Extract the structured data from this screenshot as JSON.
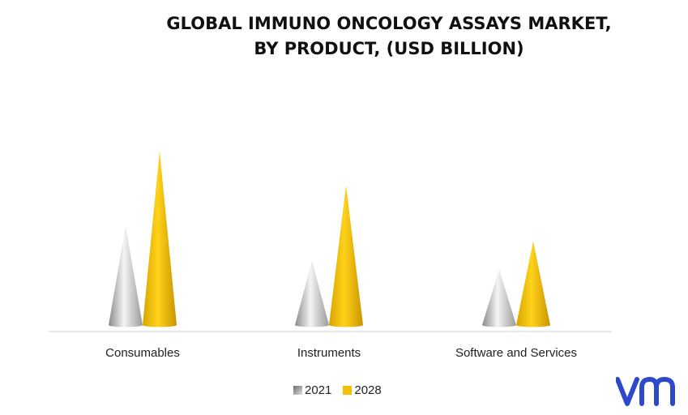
{
  "chart_data": {
    "type": "bar",
    "title_lines": [
      "GLOBAL IMMUNO ONCOLOGY ASSAYS MARKET,",
      "BY PRODUCT, (USD BILLION)"
    ],
    "categories": [
      "Consumables",
      "Instruments",
      "Software and Services"
    ],
    "series": [
      {
        "name": "2021",
        "values": [
          4.6,
          3.0,
          2.6
        ],
        "color": "#c8c8c8"
      },
      {
        "name": "2028",
        "values": [
          8.1,
          6.5,
          3.9
        ],
        "color": "#f5c000"
      }
    ],
    "ylim": [
      0,
      8.5
    ],
    "grid": false,
    "legend_position": "bottom",
    "shape": "cone"
  },
  "logo": {
    "text": "vm",
    "color": "#2b49c8"
  }
}
